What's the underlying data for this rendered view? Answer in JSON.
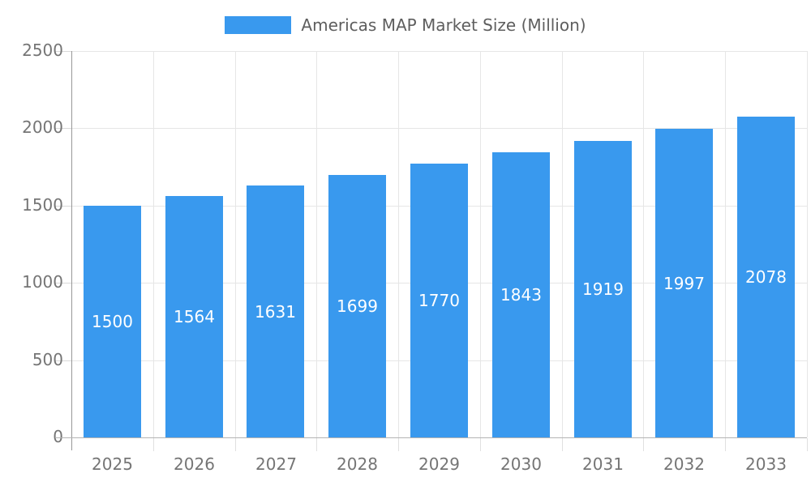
{
  "legend": {
    "label": "Americas MAP Market Size (Million)"
  },
  "colors": {
    "bar": "#3999ee",
    "grid": "#e6e6e6",
    "axis": "#989898",
    "baseline": "#b3b3b3",
    "y_tick": "#d9d9d9",
    "x_tick": "#e0e0e0",
    "axis_label": "#757575",
    "legend_text": "#5e5e5e",
    "bar_label": "#ffffff"
  },
  "chart_data": {
    "type": "bar",
    "title": "Americas MAP Market Size (Million)",
    "categories": [
      "2025",
      "2026",
      "2027",
      "2028",
      "2029",
      "2030",
      "2031",
      "2032",
      "2033"
    ],
    "series": [
      {
        "name": "Americas MAP Market Size (Million)",
        "values": [
          1500,
          1564,
          1631,
          1699,
          1770,
          1843,
          1919,
          1997,
          2078
        ]
      }
    ],
    "xlabel": "",
    "ylabel": "",
    "ylim": [
      0,
      2500
    ],
    "yticks": [
      0,
      500,
      1000,
      1500,
      2000,
      2500
    ],
    "grid": true,
    "legend_position": "top",
    "bar_value_labels": true
  }
}
